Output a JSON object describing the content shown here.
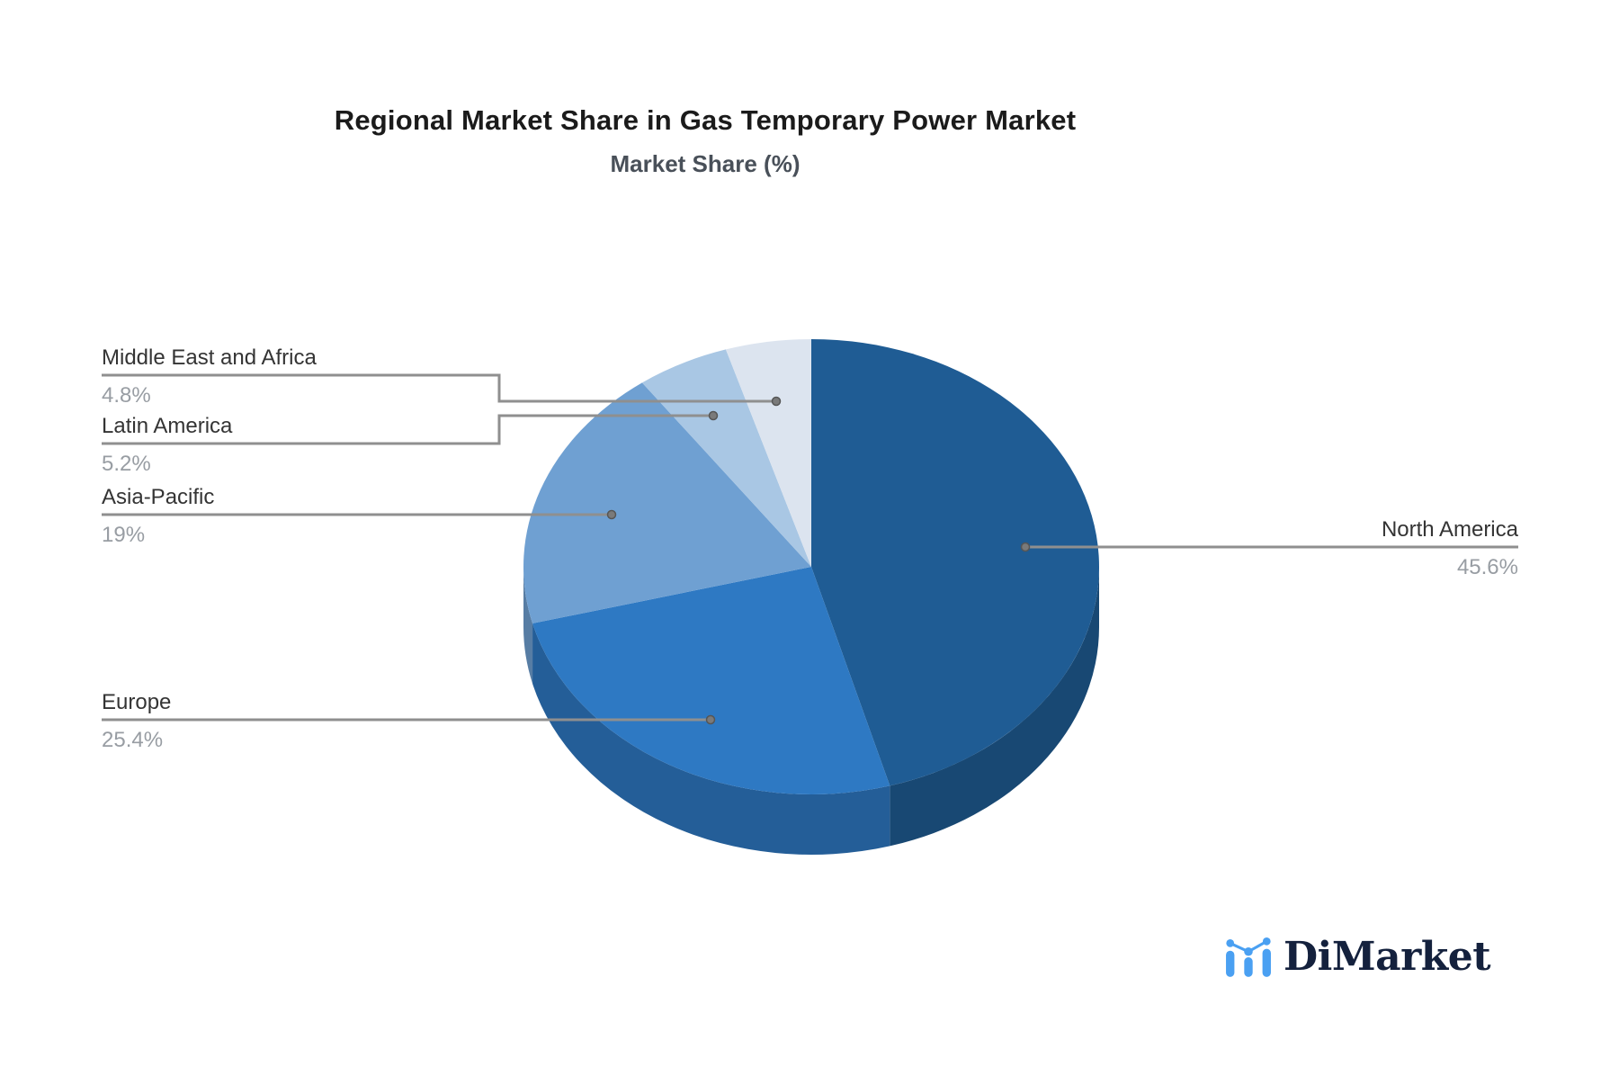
{
  "header": {
    "title": "Regional Market Share in Gas Temporary Power Market",
    "subtitle": "Market Share (%)"
  },
  "chart_data": {
    "type": "pie",
    "style": "3d",
    "title": "Regional Market Share in Gas Temporary Power Market",
    "subtitle": "Market Share (%)",
    "unit": "%",
    "start_angle": "12-o-clock",
    "direction": "clockwise",
    "legend_position": "callout-labels",
    "slices": [
      {
        "label": "North America",
        "value": 45.6,
        "display": "45.6%",
        "color": "#1f5c94"
      },
      {
        "label": "Europe",
        "value": 25.4,
        "display": "25.4%",
        "color": "#2e79c3"
      },
      {
        "label": "Asia-Pacific",
        "value": 19,
        "display": "19%",
        "color": "#6fa0d2"
      },
      {
        "label": "Latin America",
        "value": 5.2,
        "display": "5.2%",
        "color": "#a9c7e4"
      },
      {
        "label": "Middle East and Africa",
        "value": 4.8,
        "display": "4.8%",
        "color": "#dce4ef"
      }
    ],
    "label_text_color": "#343434",
    "value_text_color": "#989da3",
    "leader_line_color": "#8f8f8f"
  },
  "branding": {
    "logo_text": "DiMarket",
    "logo_accent_color": "#4aa0f2",
    "logo_text_color": "#14213d"
  }
}
